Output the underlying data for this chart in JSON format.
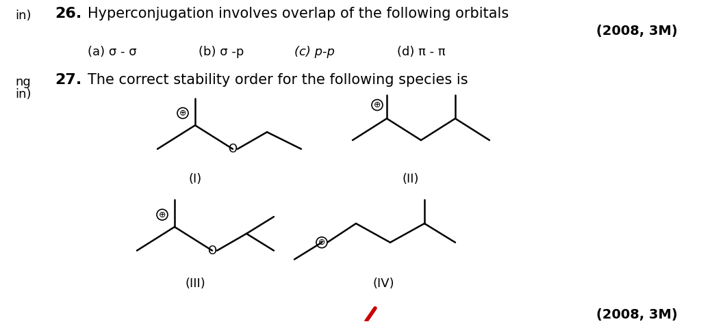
{
  "bg_color": "#ffffff",
  "q26_number": "26.",
  "q26_text": "Hyperconjugation involves overlap of the following orbitals",
  "q26_year": "(2008, 3M)",
  "opt_a": "(a) σ - σ",
  "opt_b": "(b) σ -p",
  "opt_c": "(c) p-p",
  "opt_d": "(d) π - π",
  "q27_number": "27.",
  "q27_text": "The correct stability order for the following species is",
  "q27_year": "(2008, 3M)",
  "struct_labels": [
    "(I)",
    "(II)",
    "(III)",
    "(IV)"
  ],
  "figsize": [
    10.24,
    4.74
  ],
  "dpi": 100,
  "lw": 1.8,
  "circle_r": 8
}
